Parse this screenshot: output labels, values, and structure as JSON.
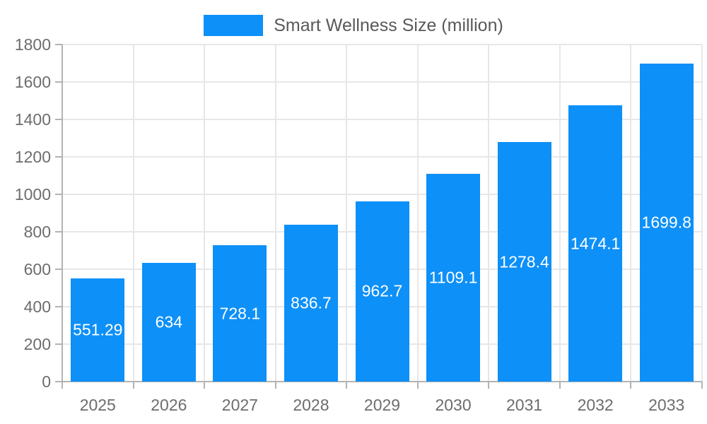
{
  "chart_data": {
    "type": "bar",
    "legend": "Smart Wellness Size (million)",
    "legend_position": "top",
    "categories": [
      "2025",
      "2026",
      "2027",
      "2028",
      "2029",
      "2030",
      "2031",
      "2032",
      "2033"
    ],
    "values": [
      551.29,
      634,
      728.1,
      836.7,
      962.7,
      1109.1,
      1278.4,
      1474.1,
      1699.8
    ],
    "value_labels": [
      "551.29",
      "634",
      "728.1",
      "836.7",
      "962.7",
      "1109.1",
      "1278.4",
      "1474.1",
      "1699.8"
    ],
    "xlabel": "",
    "ylabel": "",
    "ylim": [
      0,
      1800
    ],
    "ystep": 200,
    "grid": true,
    "colors": {
      "bar": "#0d90f8",
      "gridline": "#e7e7e7",
      "axis": "#b3b3b3",
      "tick_label": "#6d6d6d",
      "legend_text": "#595959",
      "value_label": "#ffffff"
    }
  }
}
